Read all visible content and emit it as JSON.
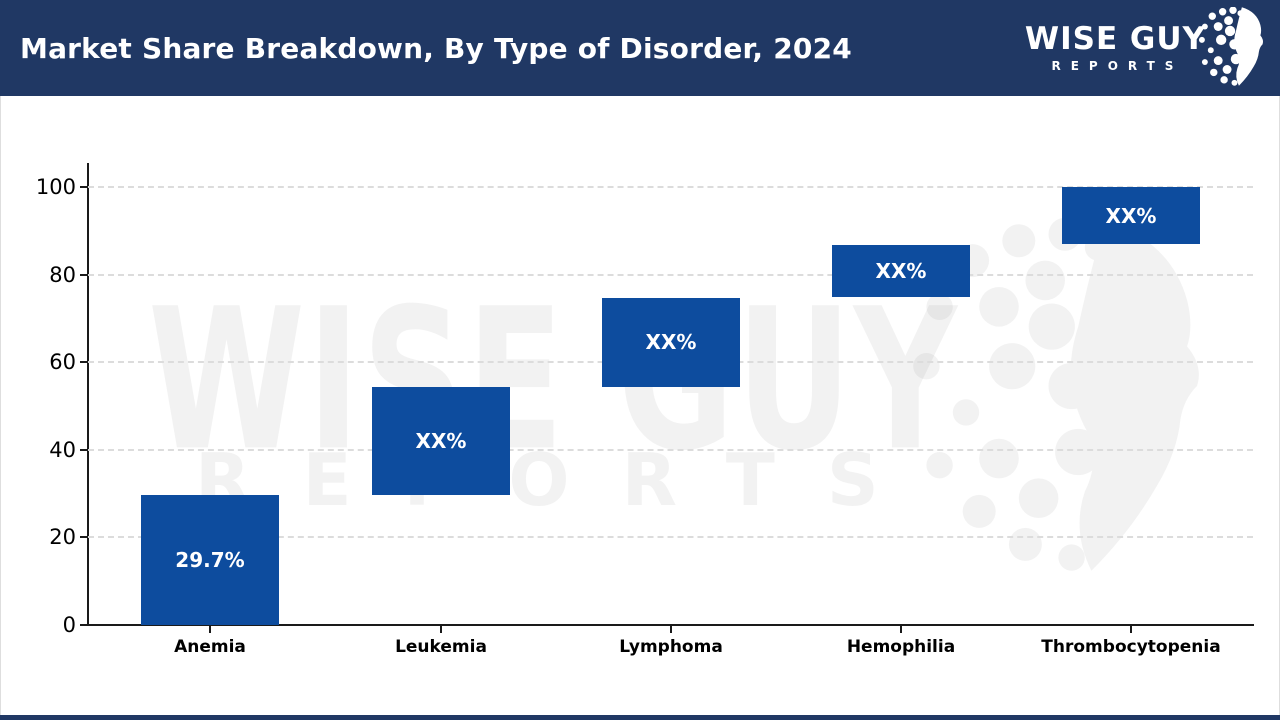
{
  "page": {
    "accent_color": "#203864",
    "background": "#ffffff"
  },
  "header": {
    "title": "Market Share Breakdown, By Type of Disorder, 2024",
    "logo": {
      "name": "WISE GUY",
      "subtitle": "REPORTS"
    }
  },
  "watermark": {
    "line1": "WISE GUY",
    "line2": "REPORTS"
  },
  "chart_data": {
    "type": "bar",
    "variant": "waterfall",
    "title": "Market Share Breakdown, By Type of Disorder, 2024",
    "categories": [
      "Anemia",
      "Leukemia",
      "Lymphoma",
      "Hemophilia",
      "Thrombocytopenia"
    ],
    "segments": [
      {
        "category": "Anemia",
        "start": 0,
        "end": 29.7,
        "label": "29.7%"
      },
      {
        "category": "Leukemia",
        "start": 29.7,
        "end": 54.4,
        "label": "XX%"
      },
      {
        "category": "Lymphoma",
        "start": 54.4,
        "end": 74.7,
        "label": "XX%"
      },
      {
        "category": "Hemophilia",
        "start": 74.8,
        "end": 86.8,
        "label": "XX%"
      },
      {
        "category": "Thrombocytopenia",
        "start": 86.9,
        "end": 100,
        "label": "XX%"
      }
    ],
    "values_pct": [
      29.7,
      24.7,
      20.3,
      12.0,
      13.1
    ],
    "xlabel": "",
    "ylabel": "",
    "ylim": [
      0,
      100
    ],
    "yticks": [
      0,
      20,
      40,
      60,
      80,
      100
    ],
    "grid": "horizontal-dashed",
    "legend": false,
    "bar_color": "#0d4c9e",
    "bar_label_color": "#ffffff"
  }
}
